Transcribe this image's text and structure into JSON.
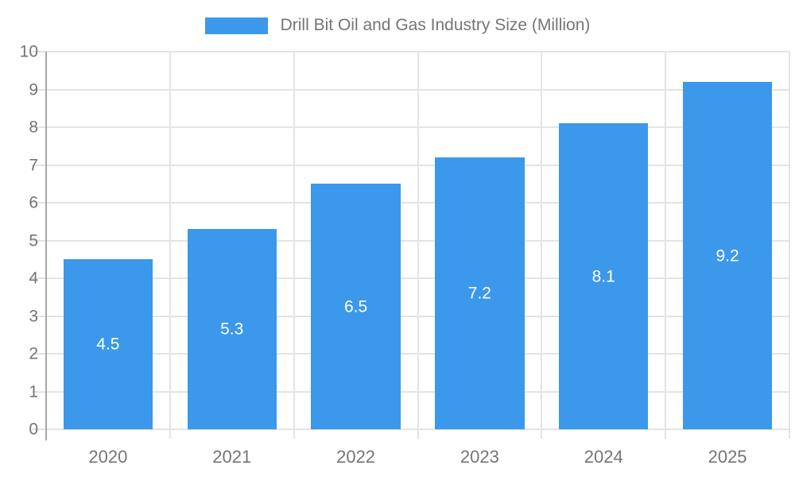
{
  "legend": {
    "label": "Drill Bit Oil and Gas Industry Size (Million)"
  },
  "chart_data": {
    "type": "bar",
    "title": "Drill Bit Oil and Gas Industry Size (Million)",
    "categories": [
      "2020",
      "2021",
      "2022",
      "2023",
      "2024",
      "2025"
    ],
    "values": [
      4.5,
      5.3,
      6.5,
      7.2,
      8.1,
      9.2
    ],
    "value_labels": [
      "4.5",
      "5.3",
      "6.5",
      "7.2",
      "8.1",
      "9.2"
    ],
    "xlabel": "",
    "ylabel": "",
    "ylim": [
      0,
      10
    ],
    "y_ticks": [
      0,
      1,
      2,
      3,
      4,
      5,
      6,
      7,
      8,
      9,
      10
    ],
    "grid": true,
    "legend_position": "top",
    "bar_width_fraction": 0.72,
    "colors": {
      "bar": "#3B98EB",
      "text": "#757575",
      "value_label": "#ffffff",
      "grid": "#e4e4e4",
      "axis": "#a6a6a6",
      "background": "#ffffff"
    }
  }
}
